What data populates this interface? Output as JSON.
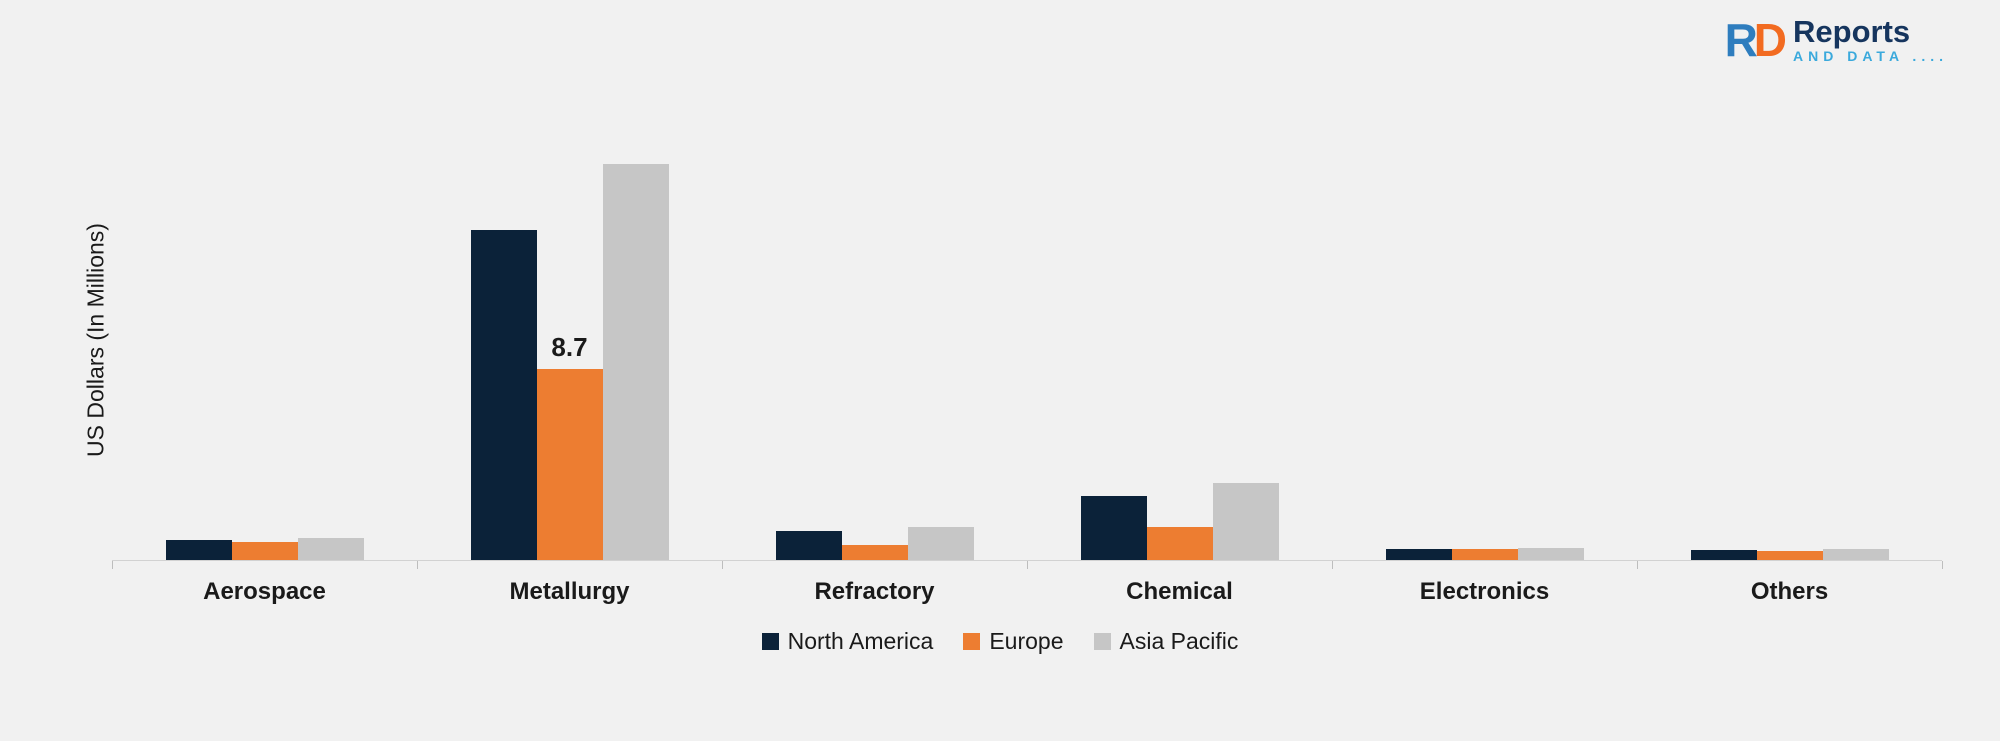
{
  "logo": {
    "mark_r": "R",
    "mark_d": "D",
    "brand": "Reports",
    "tagline": "AND DATA ....",
    "brand_color": "#16355e",
    "tagline_color": "#3aa9dc",
    "mark_blue": "#2e7dbe",
    "mark_orange": "#f26b21"
  },
  "chart_data": {
    "type": "bar",
    "title": "",
    "xlabel": "",
    "ylabel": "US Dollars (In Millions)",
    "categories": [
      "Aerospace",
      "Metallurgy",
      "Refractory",
      "Chemical",
      "Electronics",
      "Others"
    ],
    "series": [
      {
        "name": "North America",
        "color": "#0b2239",
        "values": [
          0.9,
          15.0,
          1.3,
          2.9,
          0.5,
          0.45
        ]
      },
      {
        "name": "Europe",
        "color": "#ed7d31",
        "values": [
          0.8,
          8.7,
          0.7,
          1.5,
          0.5,
          0.4
        ]
      },
      {
        "name": "Asia Pacific",
        "color": "#c6c6c6",
        "values": [
          1.0,
          18.0,
          1.5,
          3.5,
          0.55,
          0.5
        ]
      }
    ],
    "bar_labels": [
      {
        "series": "Europe",
        "category": "Metallurgy",
        "text": "8.7"
      }
    ],
    "ylim": [
      0,
      20
    ],
    "grid": false,
    "legend_position": "bottom"
  }
}
